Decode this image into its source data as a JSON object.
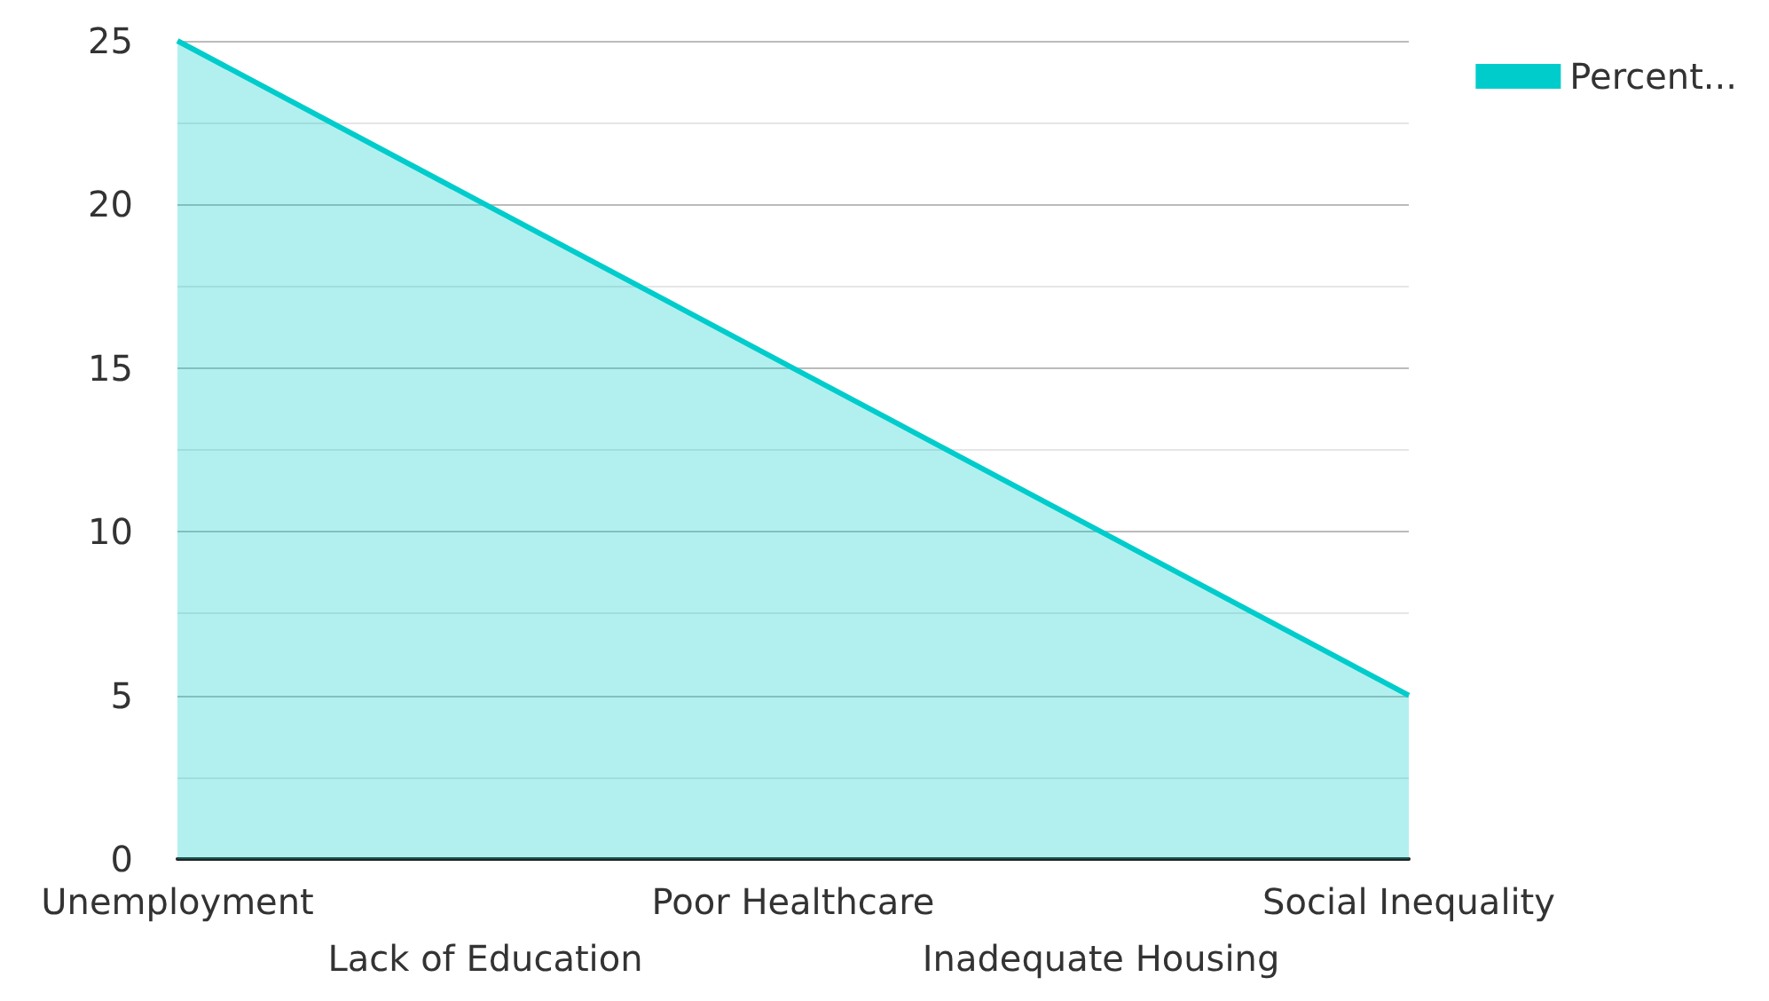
{
  "chart_data": {
    "type": "area",
    "categories": [
      "Unemployment",
      "Lack of Education",
      "Poor Healthcare",
      "Inadequate Housing",
      "Social Inequality"
    ],
    "series": [
      {
        "name": "Percent...",
        "color": "#00cccc",
        "values": [
          25,
          20,
          15,
          10,
          5
        ]
      }
    ],
    "ylim": [
      0,
      25
    ],
    "yticks": [
      0,
      {
        "value": 2.5,
        "label": null
      },
      5,
      {
        "value": 7.5,
        "label": null
      },
      10,
      {
        "value": 12.5,
        "label": null
      },
      15,
      {
        "value": 17.5,
        "label": null
      },
      20,
      {
        "value": 22.5,
        "label": null
      },
      25
    ],
    "grid": "y",
    "legend": "top right"
  }
}
